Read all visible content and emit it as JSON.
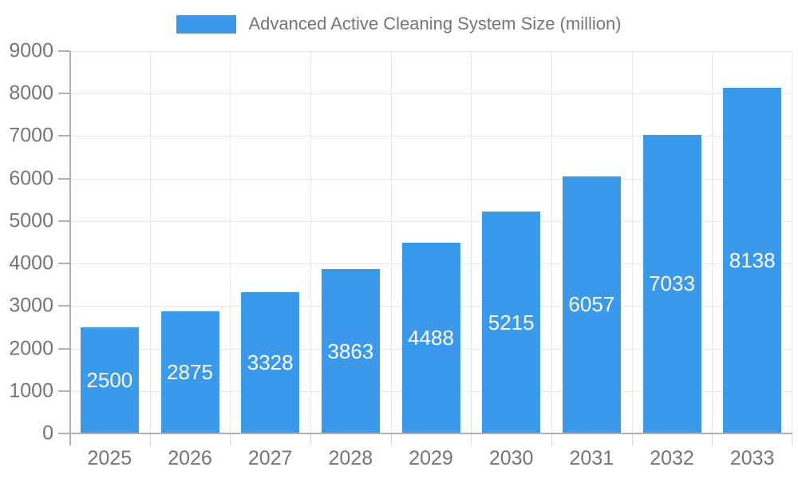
{
  "chart_data": {
    "type": "bar",
    "legend": "Advanced Active Cleaning System Size (million)",
    "legend_position": "top",
    "categories": [
      "2025",
      "2026",
      "2027",
      "2028",
      "2029",
      "2030",
      "2031",
      "2032",
      "2033"
    ],
    "values": [
      2500,
      2875,
      3328,
      3863,
      4488,
      5215,
      6057,
      7033,
      8138
    ],
    "ylim": [
      0,
      9000
    ],
    "ytick_step": 1000,
    "grid": true,
    "colors": {
      "bar": "#3B99EC",
      "bar_label": "#FFFFFF",
      "axis_text": "#757575",
      "grid_line": "#E6E6E6",
      "axis_line": "#B0B0B0",
      "background": "#FFFFFF"
    }
  }
}
